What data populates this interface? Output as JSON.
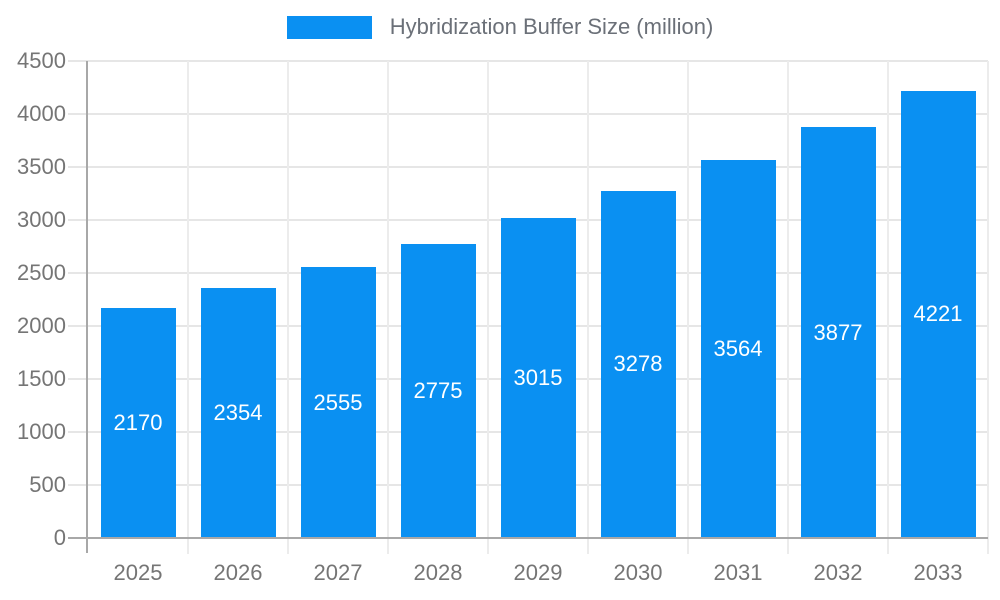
{
  "chart_data": {
    "type": "bar",
    "legend": "Hybridization Buffer Size (million)",
    "legend_position": "top-center",
    "categories": [
      "2025",
      "2026",
      "2027",
      "2028",
      "2029",
      "2030",
      "2031",
      "2032",
      "2033"
    ],
    "values": [
      2170,
      2354,
      2555,
      2775,
      3015,
      3278,
      3564,
      3877,
      4221
    ],
    "ylim": [
      0,
      4500
    ],
    "ytick_step": 500,
    "yticks": [
      0,
      500,
      1000,
      1500,
      2000,
      2500,
      3000,
      3500,
      4000,
      4500
    ],
    "grid": true,
    "value_labels": "inside-center",
    "colors": {
      "bar": "#0a90f2",
      "value_label": "#ffffff",
      "hgrid": "#e6e6e6",
      "vgrid": "#ececec",
      "axis": "#a8a8a8",
      "tick_text": "#757575",
      "legend_text": "#6b7078",
      "background": "#ffffff"
    }
  }
}
